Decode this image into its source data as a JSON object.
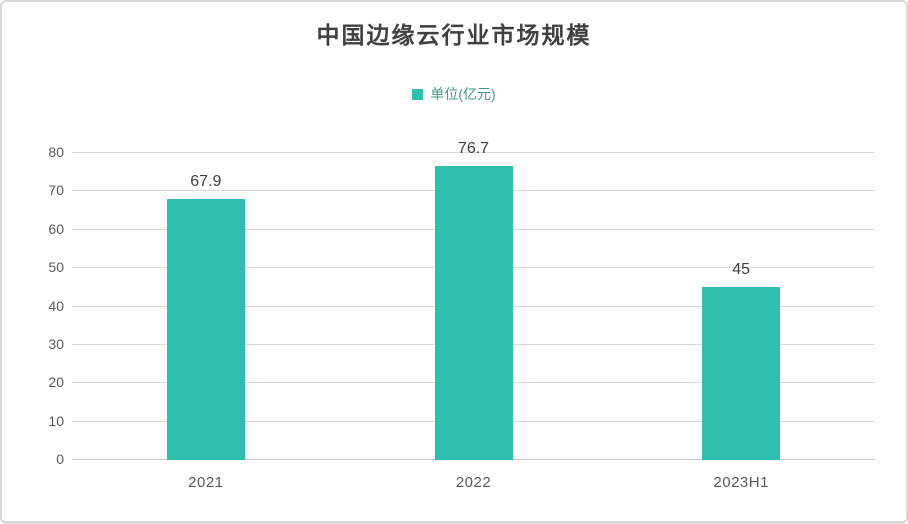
{
  "chart_data": {
    "type": "bar",
    "title": "中国边缘云行业市场规模",
    "categories": [
      "2021",
      "2022",
      "2023H1"
    ],
    "values": [
      67.9,
      76.7,
      45
    ],
    "value_labels": [
      "67.9",
      "76.7",
      "45"
    ],
    "xlabel": "",
    "ylabel": "",
    "ylim": [
      0,
      80
    ],
    "ytick_step": 10,
    "yticks": [
      "0",
      "10",
      "20",
      "30",
      "40",
      "50",
      "60",
      "70",
      "80"
    ],
    "grid": true,
    "legend": [
      "单位(亿元)"
    ],
    "legend_position": "top-center"
  },
  "colors": {
    "bar": "#2fbfae",
    "legend_swatch": "#2fbfae",
    "title_text": "#404040",
    "value_label_text": "#404040",
    "axis_text": "#595959",
    "legend_text": "#44978a",
    "gridline": "#d9d9d9",
    "frame_border": "#dadada"
  }
}
